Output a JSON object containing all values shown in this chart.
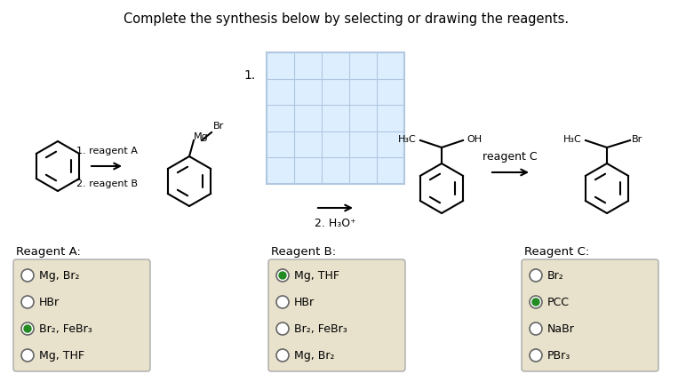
{
  "title": "Complete the synthesis below by selecting or drawing the reagents.",
  "title_fontsize": 10.5,
  "background_color": "#ffffff",
  "reagent_a_label": "Reagent A:",
  "reagent_b_label": "Reagent B:",
  "reagent_c_label": "Reagent C:",
  "reagent_a_options": [
    "Mg, Br₂",
    "HBr",
    "Br₂, FeBr₃",
    "Mg, THF"
  ],
  "reagent_b_options": [
    "Mg, THF",
    "HBr",
    "Br₂, FeBr₃",
    "Mg, Br₂"
  ],
  "reagent_c_options": [
    "Br₂",
    "PCC",
    "NaBr",
    "PBr₃"
  ],
  "reagent_a_selected": 2,
  "reagent_b_selected": 0,
  "reagent_c_selected": 1,
  "box_facecolor": "#e8e2cc",
  "box_edgecolor": "#aaaaaa",
  "selected_color": "#228B22",
  "step1_label": "1. reagent A",
  "step2_label": "2. reagent B",
  "grid_step_label": "1.",
  "step4_label": "2. H₃O⁺",
  "reagent_c_arrow_label": "reagent C",
  "grid_color": "#b0c8e0",
  "grid_bg": "#ddeeff"
}
